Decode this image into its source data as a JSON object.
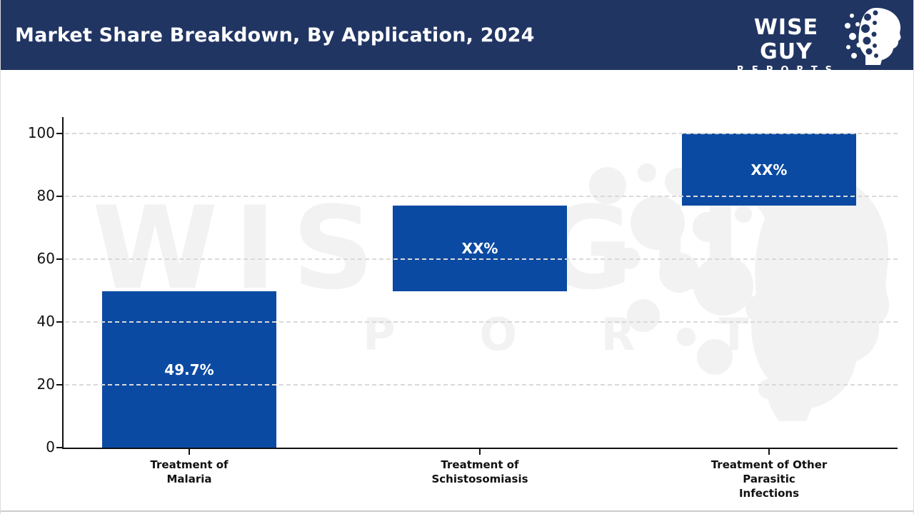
{
  "header": {
    "title": "Market Share Breakdown, By Application, 2024",
    "background_color": "#213563",
    "text_color": "#ffffff",
    "logo": {
      "line1": "WISE GUY",
      "line2": "REPORTS"
    }
  },
  "watermark": {
    "line1": "WISE GUY",
    "line2": "R E P O R T S",
    "color": "#f2f2f2"
  },
  "chart_data": {
    "type": "bar",
    "subtype": "waterfall-segmented-breakdown",
    "title": "Market Share Breakdown, By Application, 2024",
    "categories": [
      "Treatment of Malaria",
      "Treatment of Schistosomiasis",
      "Treatment of Other Parasitic Infections"
    ],
    "category_label_lines": [
      [
        "Treatment of",
        "Malaria"
      ],
      [
        "Treatment of",
        "Schistosomiasis"
      ],
      [
        "Treatment of Other",
        "Parasitic",
        "Infections"
      ]
    ],
    "bars": [
      {
        "category": "Treatment of Malaria",
        "label": "49.7%",
        "y_start": 0,
        "y_end": 49.7
      },
      {
        "category": "Treatment of Schistosomiasis",
        "label": "XX%",
        "y_start": 49.7,
        "y_end": 77
      },
      {
        "category": "Treatment of Other Parasitic Infections",
        "label": "XX%",
        "y_start": 77,
        "y_end": 100
      }
    ],
    "yticks": [
      0,
      20,
      40,
      60,
      80,
      100
    ],
    "ylim": [
      0,
      105
    ],
    "xlabel": "",
    "ylabel": "",
    "grid": "horizontal dashed, drawn over bars",
    "legend": null,
    "bar_color": "#0b4aa2",
    "bar_label_color": "#ffffff",
    "grid_color": "#d9d9d9",
    "axis_color": "#111111",
    "tick_label_color": "#111111"
  }
}
